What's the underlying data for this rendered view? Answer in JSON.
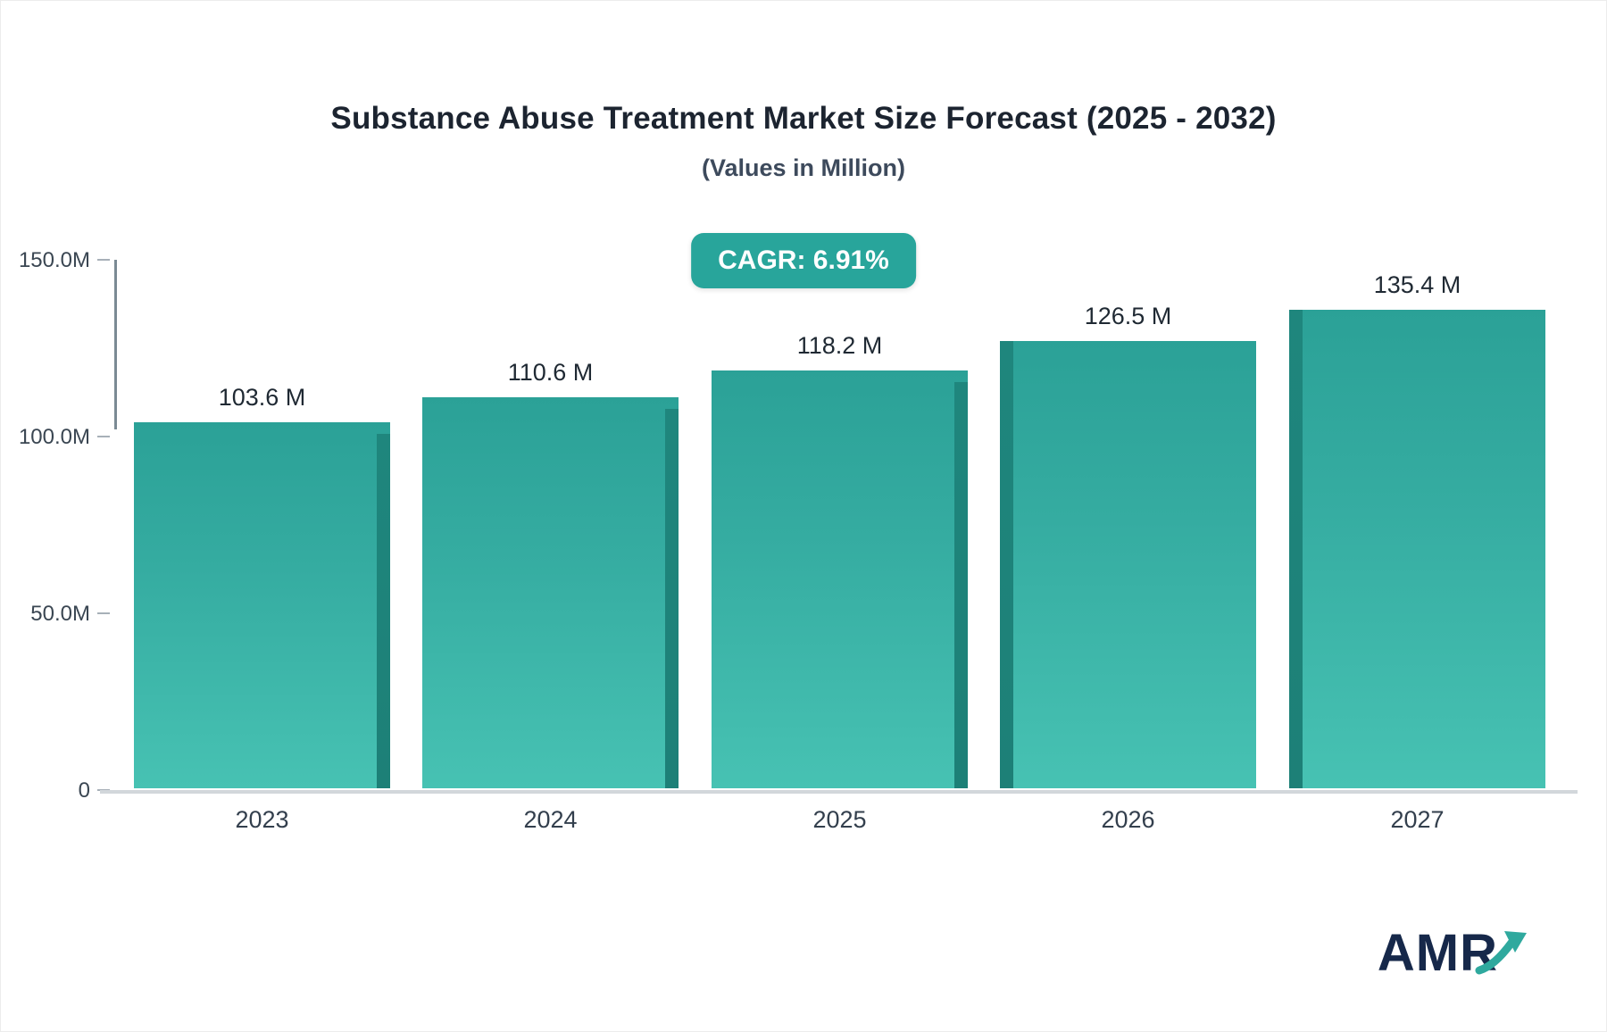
{
  "header": {
    "title": "Substance Abuse Treatment Market Size Forecast (2025 - 2032)",
    "subtitle": "(Values in Million)",
    "cagr_badge": "CAGR: 6.91%"
  },
  "chart_data": {
    "type": "bar",
    "title": "Substance Abuse Treatment Market Size Forecast (2025 - 2032)",
    "subtitle": "(Values in Million)",
    "categories": [
      "2023",
      "2024",
      "2025",
      "2026",
      "2027"
    ],
    "values": [
      103.6,
      110.6,
      118.2,
      126.5,
      135.4
    ],
    "value_labels": [
      "103.6 M",
      "110.6 M",
      "118.2 M",
      "126.5 M",
      "135.4 M"
    ],
    "ylim": [
      0,
      150
    ],
    "yticks": [
      150,
      100,
      50,
      0
    ],
    "ytick_labels": [
      "150.0M",
      "100.0M",
      "50.0M",
      "0"
    ],
    "annotation": "CAGR: 6.91%",
    "grid": "off",
    "legend": "none",
    "bar_color": "#2fa99e"
  },
  "branding": {
    "logo_text": "AMR"
  },
  "colors": {
    "accent_teal": "#28a59b",
    "bar_top": "#2ba197",
    "bar_bottom": "#47c2b3",
    "bar_edge_dark": "#1d8077",
    "title_text": "#1c2430",
    "axis_text": "#3a4652",
    "logo_navy": "#16284a"
  }
}
